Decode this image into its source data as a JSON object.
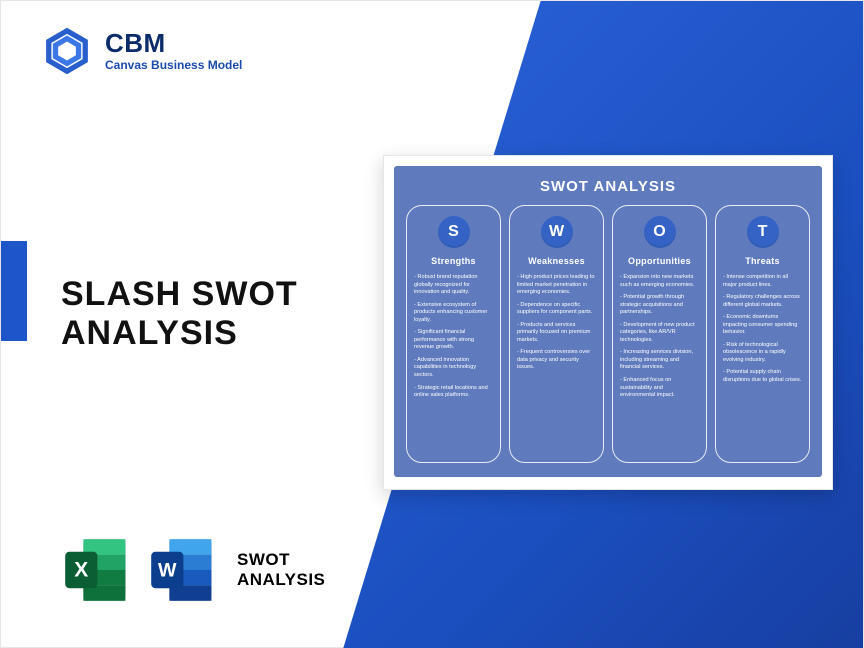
{
  "colors": {
    "brand_primary": "#1e56c9",
    "brand_dark": "#0c2b6b",
    "wedge_from": "#2b63d9",
    "wedge_to": "#173fa1",
    "swot_bg": "#5f7bbd",
    "swot_badge": "#3563c5",
    "white": "#ffffff",
    "text_black": "#111111",
    "excel_dark": "#107c41",
    "excel_mid": "#21a366",
    "excel_light": "#33c481",
    "word_dark": "#103f91",
    "word_mid": "#185abd",
    "word_light": "#2b7cd3"
  },
  "logo": {
    "title": "CBM",
    "subtitle": "Canvas Business Model"
  },
  "main_title": {
    "line1": "SLASH SWOT",
    "line2": "ANALYSIS"
  },
  "bottom_label": {
    "line1": "SWOT",
    "line2": "ANALYSIS"
  },
  "swot": {
    "title": "SWOT ANALYSIS",
    "columns": [
      {
        "letter": "S",
        "heading": "Strengths",
        "items": [
          "Robust brand reputation globally recognized for innovation and quality.",
          "Extensive ecosystem of products enhancing customer loyalty.",
          "Significant financial performance with strong revenue growth.",
          "Advanced innovation capabilities in technology sectors.",
          "Strategic retail locations and online sales platforms."
        ]
      },
      {
        "letter": "W",
        "heading": "Weaknesses",
        "items": [
          "High product prices leading to limited market penetration in emerging economies.",
          "Dependence on specific suppliers for component parts.",
          "Products and services primarily focused on premium markets.",
          "Frequent controversies over data privacy and security issues."
        ]
      },
      {
        "letter": "O",
        "heading": "Opportunities",
        "items": [
          "Expansion into new markets such as emerging economies.",
          "Potential growth through strategic acquisitions and partnerships.",
          "Development of new product categories, like AR/VR technologies.",
          "Increasing services division, including streaming and financial services.",
          "Enhanced focus on sustainability and environmental impact."
        ]
      },
      {
        "letter": "T",
        "heading": "Threats",
        "items": [
          "Intense competition in all major product lines.",
          "Regulatory challenges across different global markets.",
          "Economic downturns impacting consumer spending behavior.",
          "Risk of technological obsolescence in a rapidly evolving industry.",
          "Potential supply chain disruptions due to global crises."
        ]
      }
    ]
  }
}
